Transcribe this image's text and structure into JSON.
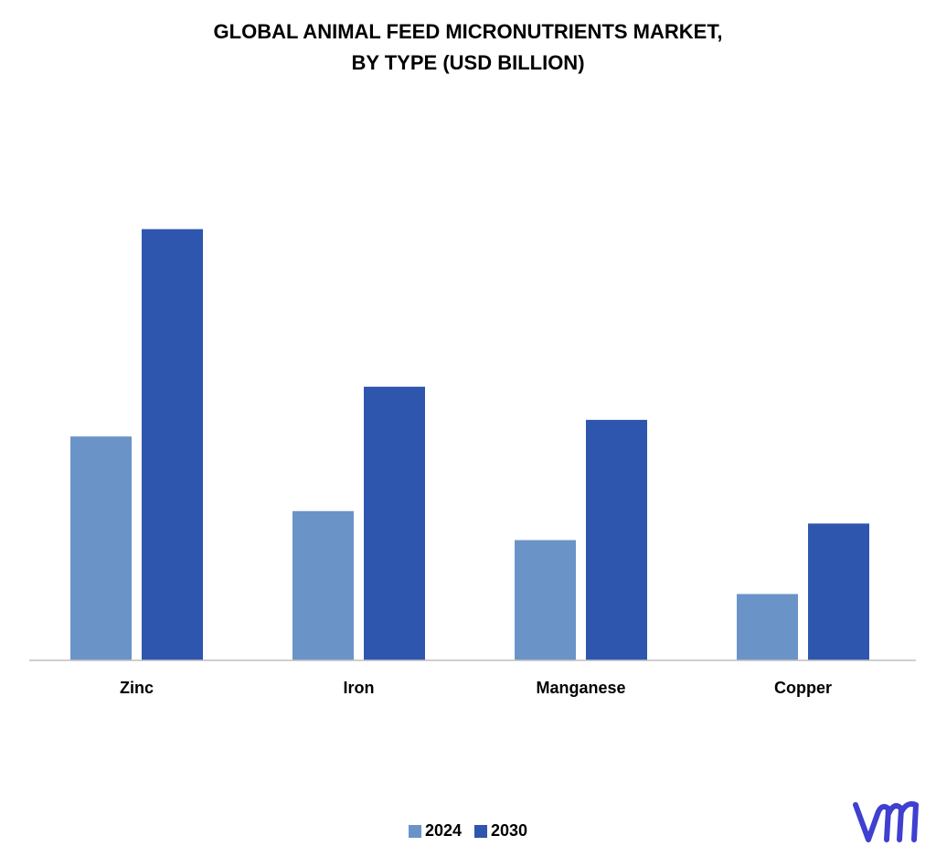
{
  "chart_data": {
    "type": "bar",
    "title_lines": [
      "GLOBAL ANIMAL FEED MICRONUTRIENTS  MARKET,",
      "BY TYPE (USD BILLION)"
    ],
    "categories": [
      "Zinc",
      "Iron",
      "Manganese",
      "Copper"
    ],
    "series": [
      {
        "name": "2024",
        "values": [
          0.54,
          0.36,
          0.29,
          0.16
        ],
        "color": "#6A94C8"
      },
      {
        "name": "2030",
        "values": [
          1.04,
          0.66,
          0.58,
          0.33
        ],
        "color": "#2E56AE"
      }
    ],
    "ylim": [
      0,
      1.2
    ],
    "grid": false,
    "legend_position": "bottom-center"
  },
  "logo": {
    "icon": "vmr-logo-icon",
    "color": "#3F3FD0"
  }
}
